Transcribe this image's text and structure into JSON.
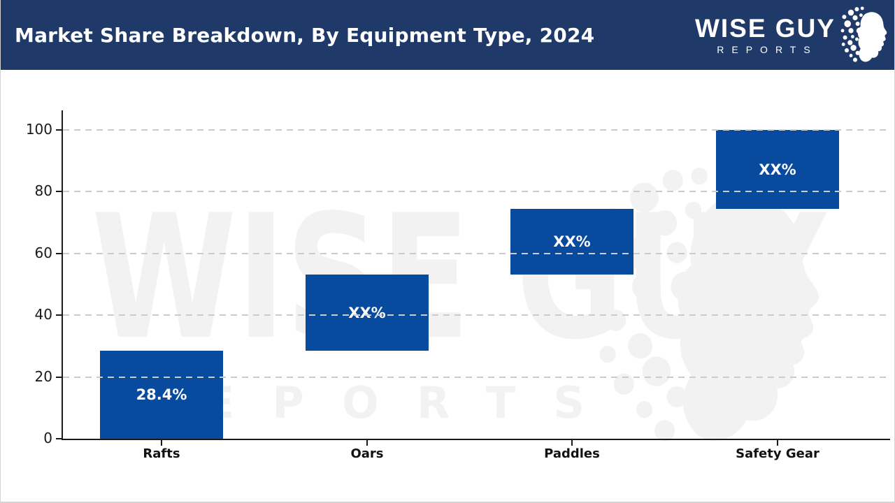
{
  "header": {
    "title": "Market Share Breakdown, By Equipment Type, 2024",
    "logo": {
      "line1": "WISE GUY",
      "line2": "REPORTS"
    }
  },
  "watermark": {
    "line1": "WISE GUY",
    "line2": "REPORTS"
  },
  "colors": {
    "header_bg": "#1f3a68",
    "bar": "#084a9e",
    "bar_label": "#ffffff",
    "grid": "#cccccc",
    "axis": "#1a1a1a",
    "watermark": "#f2f2f2"
  },
  "chart_data": {
    "type": "bar",
    "subtype": "waterfall",
    "title": "Market Share Breakdown, By Equipment Type, 2024",
    "xlabel": "",
    "ylabel": "",
    "categories": [
      "Rafts",
      "Oars",
      "Paddles",
      "Safety Gear"
    ],
    "segments": [
      {
        "category": "Rafts",
        "start": 0,
        "end": 28.4,
        "label": "28.4%"
      },
      {
        "category": "Oars",
        "start": 28.4,
        "end": 53.2,
        "label": "XX%"
      },
      {
        "category": "Paddles",
        "start": 53.2,
        "end": 74.4,
        "label": "XX%"
      },
      {
        "category": "Safety Gear",
        "start": 74.4,
        "end": 100,
        "label": "XX%"
      }
    ],
    "values": [
      28.4,
      24.8,
      21.2,
      25.6
    ],
    "yticks": [
      0,
      20,
      40,
      60,
      80,
      100
    ],
    "ylim": [
      0,
      100
    ],
    "grid": "dashed-horizontal",
    "legend": "none"
  }
}
